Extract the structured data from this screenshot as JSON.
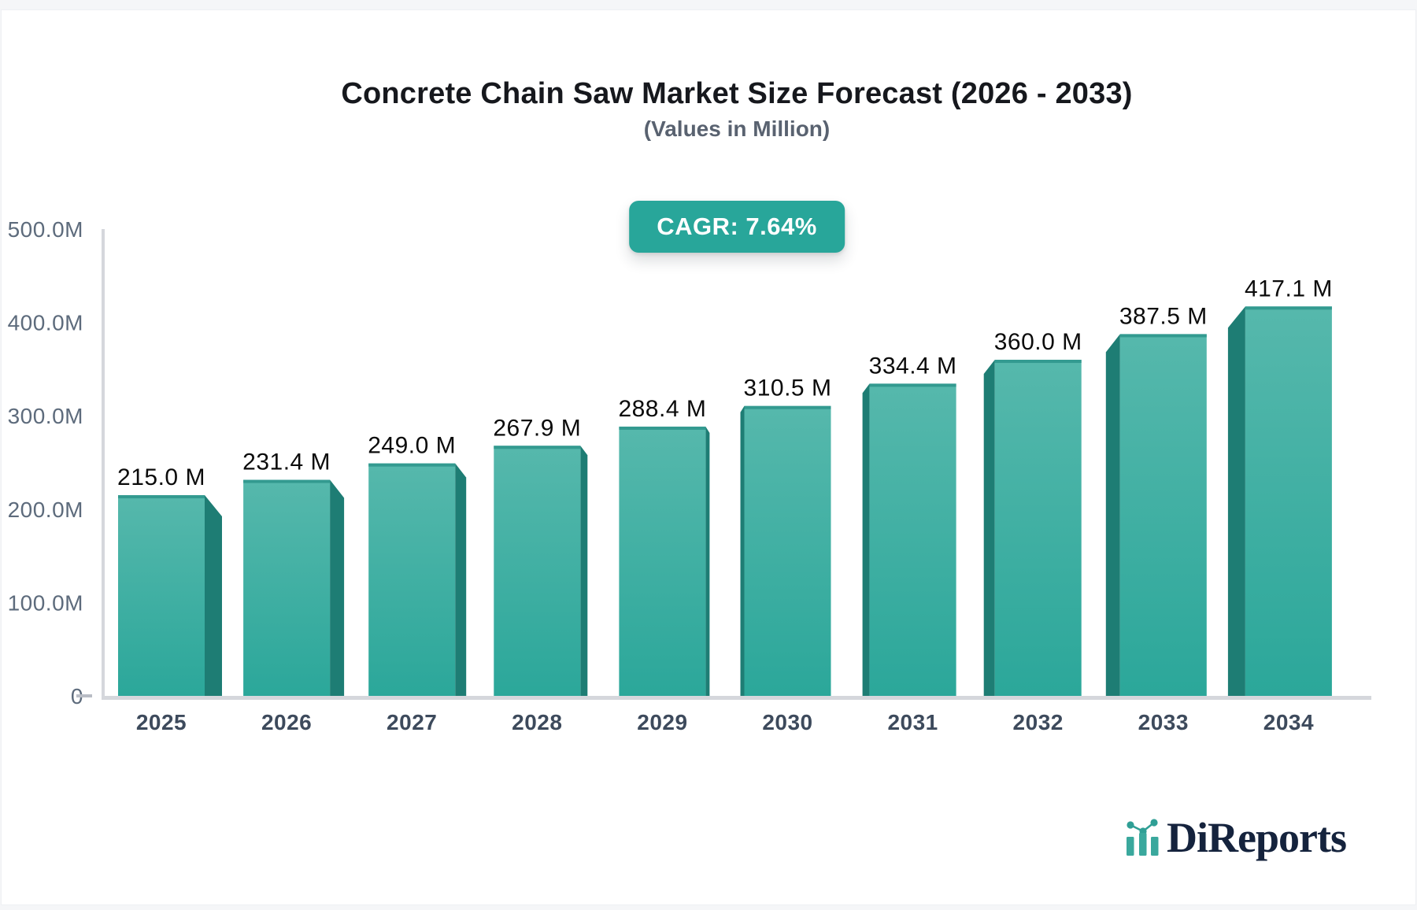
{
  "page": {
    "brand": "DiReports"
  },
  "colors": {
    "bar_face_top": "#56b8ac",
    "bar_face_bottom": "#2ba79a",
    "bar_side": "#1e7d74",
    "bar_top_edge": "#339a90",
    "badge_bg": "#28a69a",
    "badge_text": "#ffffff",
    "axis": "#d5d7dc",
    "zero_tick": "#b9bdc5",
    "ytick_text": "#5d6b7c",
    "xtick_text": "#3d4a5c",
    "value_text": "#0b0b0b",
    "title_text": "#16181d",
    "subtitle_text": "#596270",
    "brand_navy": "#15233d",
    "brand_teal": "#2f9f95"
  },
  "chart_data": {
    "type": "bar",
    "title": "Concrete Chain Saw Market Size Forecast (2026 - 2033)",
    "subtitle": "(Values in Million)",
    "cagr_label": "CAGR: 7.64%",
    "categories": [
      "2025",
      "2026",
      "2027",
      "2028",
      "2029",
      "2030",
      "2031",
      "2032",
      "2033",
      "2034"
    ],
    "values": [
      215.0,
      231.4,
      249.0,
      267.9,
      288.4,
      310.5,
      334.4,
      360.0,
      387.5,
      417.1
    ],
    "labels": [
      "215.0 M",
      "231.4 M",
      "249.0 M",
      "267.9 M",
      "288.4 M",
      "310.5 M",
      "334.4 M",
      "360.0 M",
      "387.5 M",
      "417.1 M"
    ],
    "unit": "M",
    "ylim": [
      0,
      500
    ],
    "yticks": [
      {
        "label": "500.0M",
        "value": 500
      },
      {
        "label": "400.0M",
        "value": 400
      },
      {
        "label": "300.0M",
        "value": 300
      },
      {
        "label": "200.0M",
        "value": 200
      },
      {
        "label": "100.0M",
        "value": 100
      },
      {
        "label": "0",
        "value": 0
      }
    ],
    "grid": false,
    "legend_position": "none",
    "style": "3d-bars, perspective toward center"
  }
}
